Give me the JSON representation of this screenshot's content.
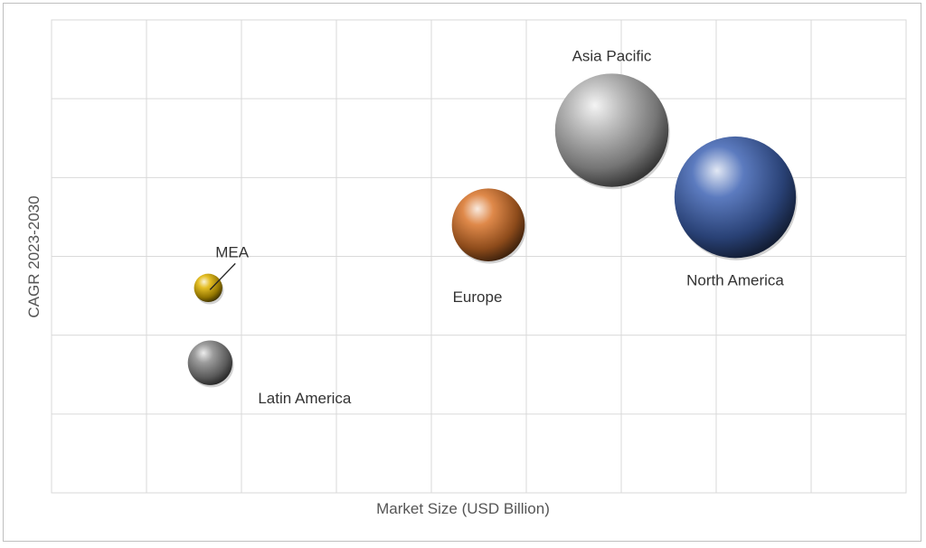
{
  "chart_data": {
    "type": "scatter",
    "title": "",
    "xlabel": "Market Size (USD Billion)",
    "ylabel": "CAGR 2023-2030",
    "xlim": [
      0,
      9
    ],
    "ylim": [
      0,
      6
    ],
    "grid": true,
    "legend": "none",
    "series": [
      {
        "label": "MEA",
        "x": 1.65,
        "y": 2.6,
        "size": 1.4,
        "color": "#e0b400",
        "label_pos": "above-leader"
      },
      {
        "label": "Latin America",
        "x": 1.67,
        "y": 1.65,
        "size": 2.2,
        "color": "#8a8a8a",
        "label_pos": "below-right"
      },
      {
        "label": "Europe",
        "x": 4.6,
        "y": 3.4,
        "size": 3.6,
        "color": "#d9742a",
        "label_pos": "below-left"
      },
      {
        "label": "Asia Pacific",
        "x": 5.9,
        "y": 4.6,
        "size": 5.6,
        "color": "#b4b4b4",
        "label_pos": "above"
      },
      {
        "label": "North America",
        "x": 7.2,
        "y": 3.75,
        "size": 6.0,
        "color": "#3f64b4",
        "label_pos": "below"
      }
    ]
  }
}
